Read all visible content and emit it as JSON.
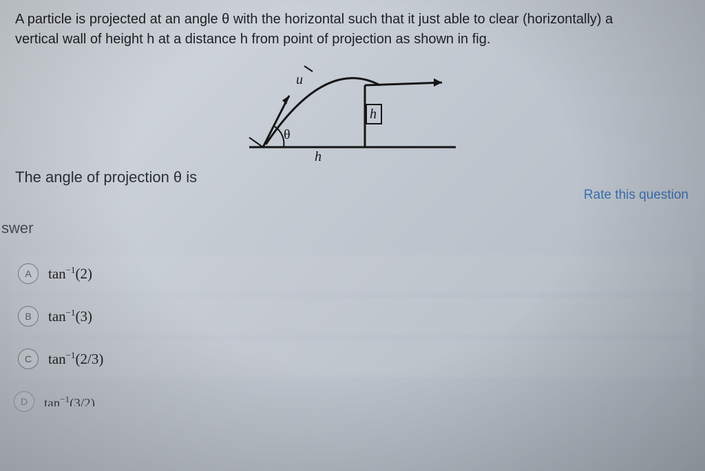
{
  "question": {
    "line1": "A particle is projected at an angle θ with the horizontal such that it just able to clear (horizontally) a",
    "line2": "vertical wall of height h at a distance h from point of projection as shown in fig."
  },
  "diagram": {
    "label_u": "u",
    "label_theta": "θ",
    "label_h_vert": "h",
    "label_h_horiz": "h",
    "stroke": "#151515",
    "stroke_width": 2,
    "background": "#cfd3da"
  },
  "prompt": "The angle of projection  θ  is",
  "rate_link": "Rate this question",
  "answer_header_fragment": "swer",
  "options": [
    {
      "letter": "A",
      "text_html": "tan<sup>−1</sup>(2)"
    },
    {
      "letter": "B",
      "text_html": "tan<sup>−1</sup>(3)"
    },
    {
      "letter": "C",
      "text_html": "tan<sup>−1</sup>(2/3)"
    }
  ],
  "cutoff_option": {
    "letter": "D",
    "text_html": "tan<sup>−1</sup>(3/2)"
  }
}
